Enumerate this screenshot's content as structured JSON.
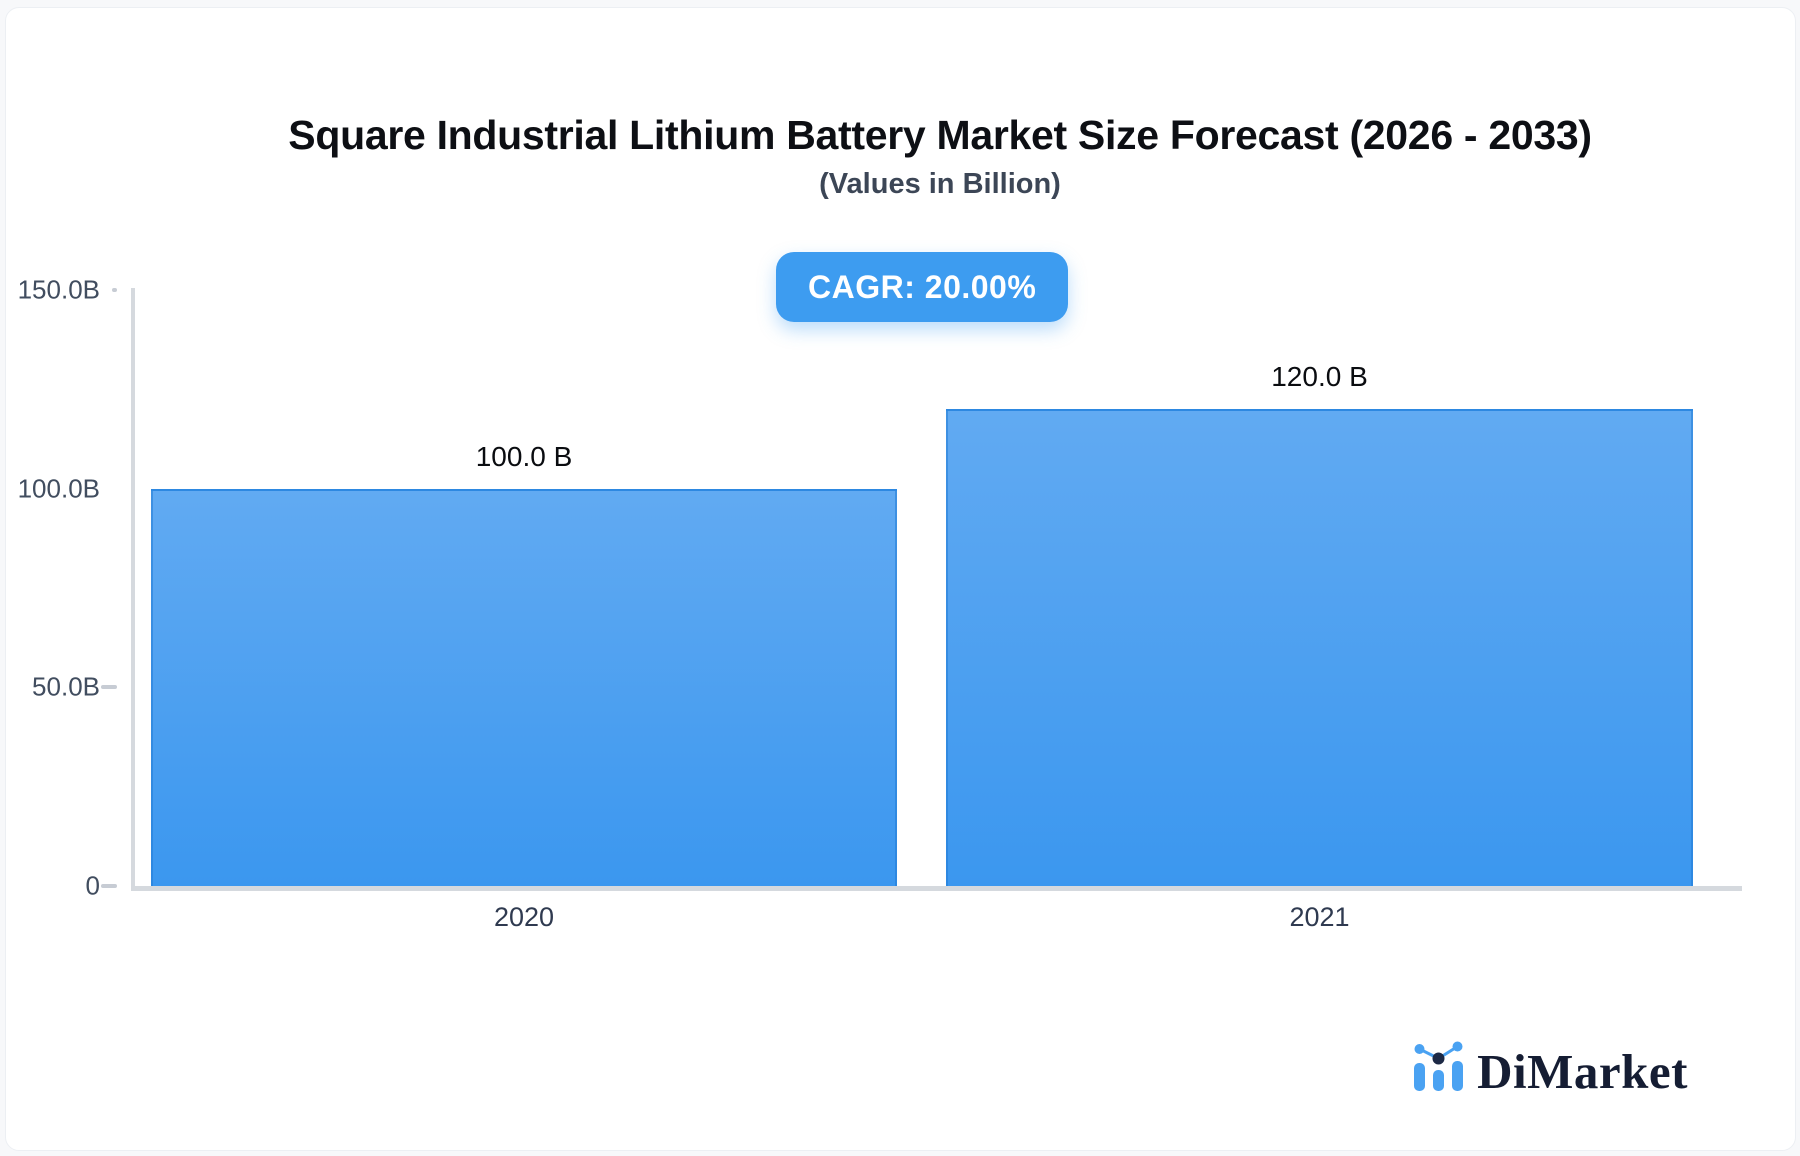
{
  "page": {
    "background": "#f7f8fa",
    "card_background": "#ffffff",
    "card_border": "#eceff3"
  },
  "header": {
    "title": "Square Industrial Lithium Battery Market Size Forecast (2026 - 2033)",
    "subtitle": "(Values in Billion)"
  },
  "cagr_badge": {
    "label": "CAGR: 20.00%",
    "background": "#3d9cf0",
    "text_color": "#ffffff"
  },
  "chart_data": {
    "type": "bar",
    "title": "Square Industrial Lithium Battery Market Size Forecast (2026 - 2033)",
    "subtitle": "(Values in Billion)",
    "categories": [
      "2020",
      "2021"
    ],
    "values": [
      100.0,
      120.0
    ],
    "value_labels": [
      "100.0 B",
      "120.0 B"
    ],
    "unit": "Billion",
    "xlabel": "",
    "ylabel": "",
    "ylim": [
      0,
      150
    ],
    "yticks": [
      {
        "label": "150.0B",
        "value": 150,
        "tick": "dot"
      },
      {
        "label": "100.0B",
        "value": 100,
        "tick": "none"
      },
      {
        "label": "50.0B",
        "value": 50,
        "tick": "dash"
      },
      {
        "label": "0",
        "value": 0,
        "tick": "dash"
      }
    ],
    "grid": false,
    "legend": null,
    "bar_color_top": "#61aaf2",
    "bar_color_bottom": "#3b97ef",
    "bar_border_color": "#2c85dd",
    "axis_color": "#d5d9de",
    "tick_label_color": "#414d5f",
    "category_label_color": "#2f3a50",
    "value_label_color": "#0a0c10"
  },
  "logo": {
    "text": "DiMarket",
    "icon": "bar-chart-with-trendline-icon",
    "icon_bar_color": "#4aa2f2",
    "icon_dark_dot_color": "#1d2945",
    "text_color": "#151d33"
  }
}
